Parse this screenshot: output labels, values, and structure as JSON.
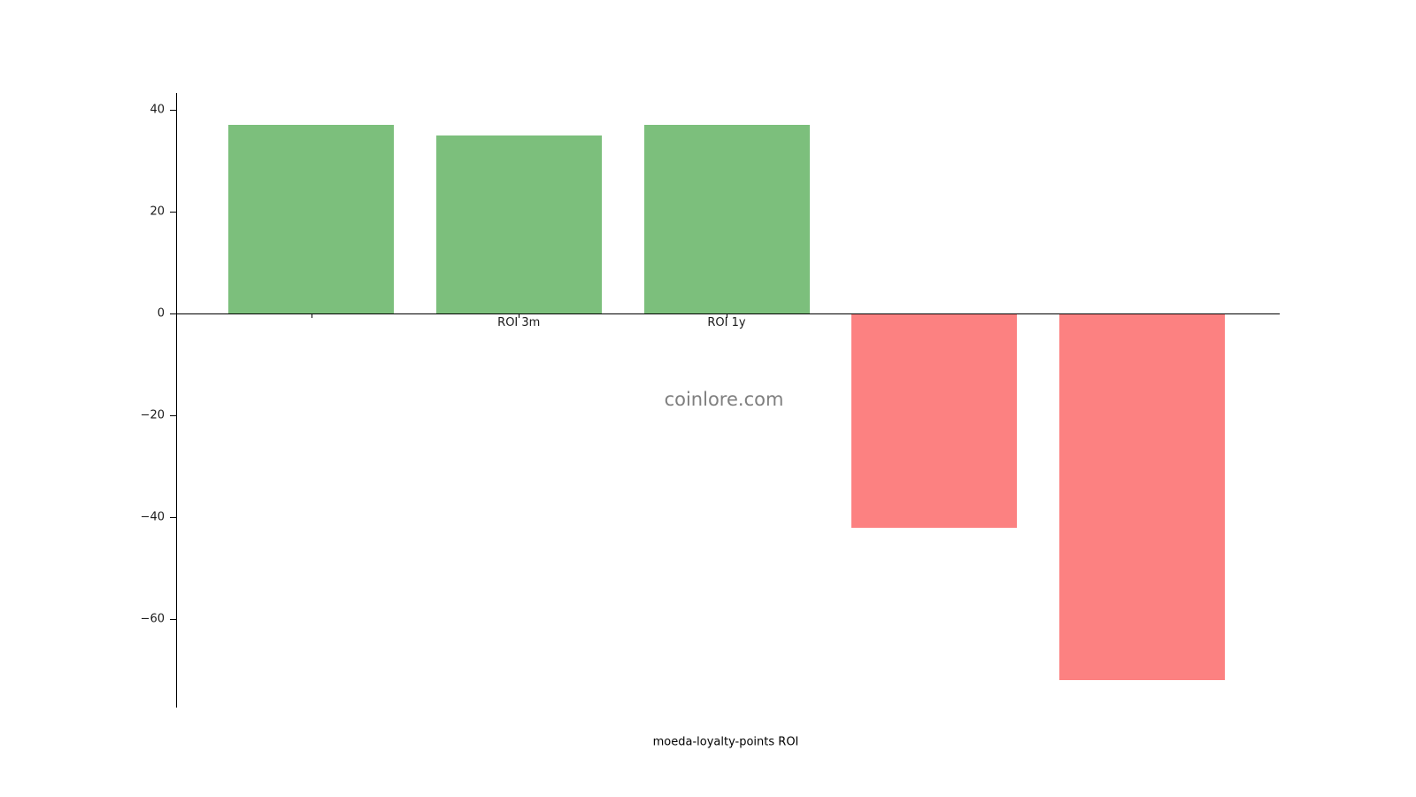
{
  "chart_data": {
    "type": "bar",
    "title": "moeda-loyalty-points ROI",
    "xlabel": "",
    "ylabel": "",
    "categories": [
      "",
      "ROI 3m",
      "ROI 1y",
      "",
      ""
    ],
    "values": [
      37,
      35,
      37,
      -42,
      -72
    ],
    "yticks": [
      40,
      20,
      0,
      -20,
      -40,
      -60
    ],
    "ylim": [
      -78,
      44
    ],
    "grid": false,
    "legend": null,
    "positive_color": "#7cbf7c",
    "negative_color": "#fc8181",
    "axis_color": "#000000",
    "note": "x tick marks exist under all 5 bars but ticks/labels of the two negative bars are hidden behind the red bars; first bar has a tick with no label"
  },
  "watermark": {
    "text": "coinlore.com",
    "color": "#7f7f7f"
  }
}
